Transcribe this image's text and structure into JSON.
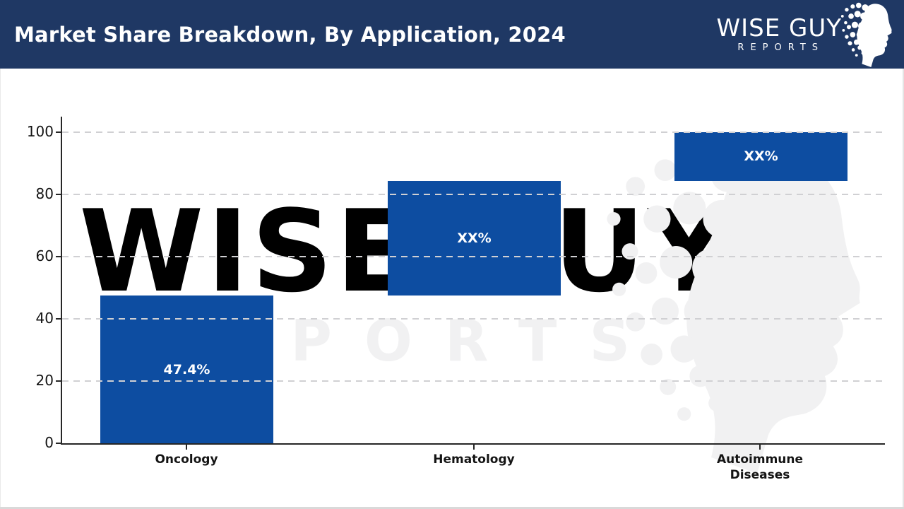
{
  "header": {
    "title": "Market Share Breakdown, By Application, 2024",
    "logo": {
      "line1": "WISE GUY",
      "line2": "REPORTS"
    }
  },
  "watermark": {
    "line1": "WISE GUY",
    "line2": "REPORTS"
  },
  "colors": {
    "header_bg": "#1f3864",
    "bar": "#0d4da1",
    "bar_label": "#ffffff",
    "gridline": "#d0d0d3",
    "axis": "#262626",
    "watermark": "#f1f1f2"
  },
  "chart_data": {
    "type": "bar",
    "subtype": "floating-waterfall",
    "title": "Market Share Breakdown, By Application, 2024",
    "categories": [
      "Oncology",
      "Hematology",
      "Autoimmune Diseases"
    ],
    "segments": [
      {
        "category": "Oncology",
        "start": 0,
        "end": 47.4,
        "value": 47.4,
        "label": "47.4%"
      },
      {
        "category": "Hematology",
        "start": 47.4,
        "end": 84.4,
        "value": 37.0,
        "label": "XX%"
      },
      {
        "category": "Autoimmune Diseases",
        "start": 84.4,
        "end": 100,
        "value": 15.6,
        "label": "XX%"
      }
    ],
    "yticks": [
      0,
      20,
      40,
      60,
      80,
      100
    ],
    "ylim": [
      0,
      100
    ],
    "xlabel": "",
    "ylabel": "",
    "grid": "horizontal-dashed",
    "legend": "none"
  }
}
